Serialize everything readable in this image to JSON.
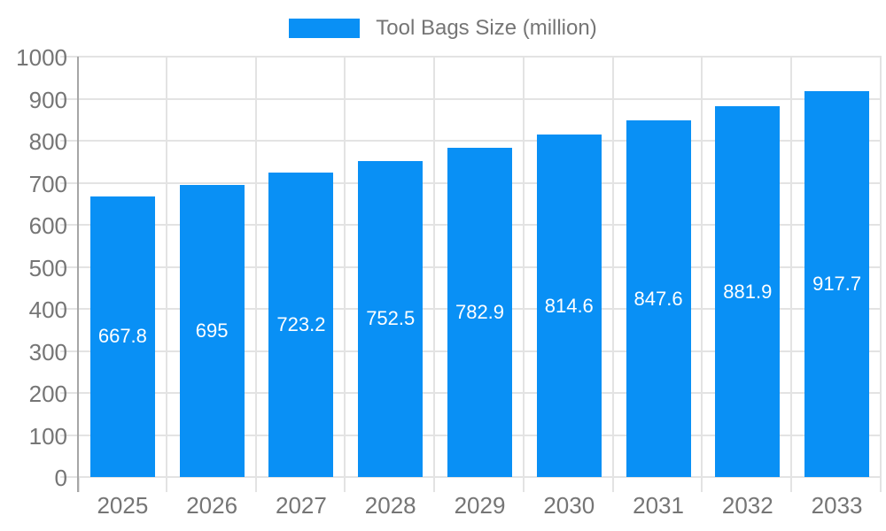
{
  "chart_data": {
    "type": "bar",
    "title": "",
    "legend": {
      "label": "Tool Bags Size (million)",
      "position": "top"
    },
    "categories": [
      "2025",
      "2026",
      "2027",
      "2028",
      "2029",
      "2030",
      "2031",
      "2032",
      "2033"
    ],
    "series": [
      {
        "name": "Tool Bags Size (million)",
        "values": [
          667.8,
          695,
          723.2,
          752.5,
          782.9,
          814.6,
          847.6,
          881.9,
          917.7
        ],
        "data_labels": [
          "667.8",
          "695",
          "723.2",
          "752.5",
          "782.9",
          "814.6",
          "847.6",
          "881.9",
          "917.7"
        ]
      }
    ],
    "xlabel": "",
    "ylabel": "",
    "ylim": [
      0,
      1000
    ],
    "y_tick_step": 100,
    "y_tick_labels": [
      "0",
      "100",
      "200",
      "300",
      "400",
      "500",
      "600",
      "700",
      "800",
      "900",
      "1000"
    ],
    "grid": true,
    "colors": {
      "bar": "#0990f5",
      "grid": "#e3e3e3",
      "axis": "#a6a6a6",
      "tick_text": "#757575",
      "bar_label_text": "#ffffff",
      "background": "#ffffff"
    }
  }
}
